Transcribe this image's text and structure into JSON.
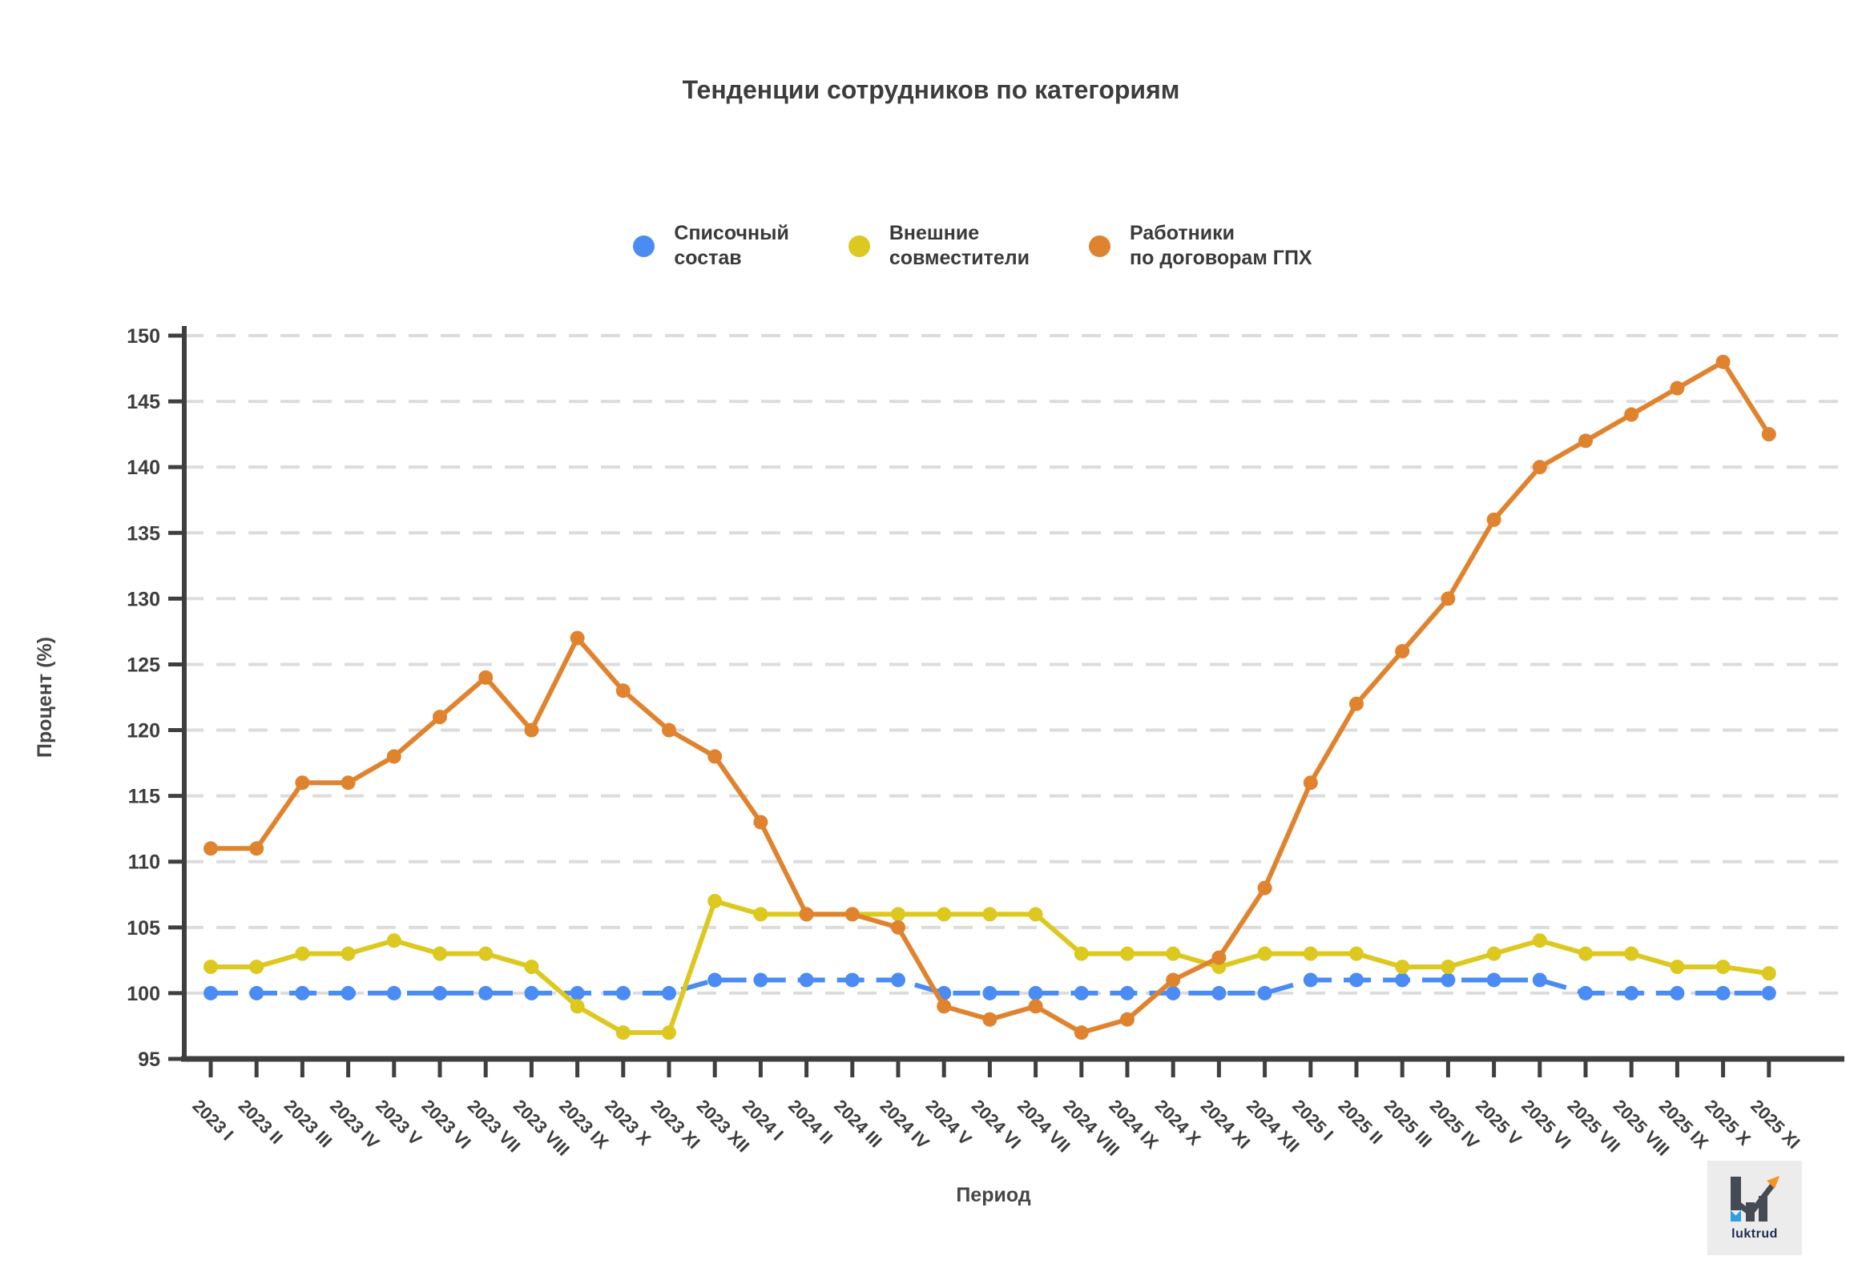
{
  "title": "Тенденции сотрудников по категориям",
  "legend": {
    "items": [
      {
        "line1": "Списочный",
        "line2": "состав",
        "color": "#4a8cf3"
      },
      {
        "line1": "Внешние",
        "line2": "совместители",
        "color": "#dcc81e"
      },
      {
        "line1": "Работники",
        "line2": "по договорам ГПХ",
        "color": "#e0832e"
      }
    ]
  },
  "chart_data": {
    "type": "line",
    "title": "Тенденции сотрудников по категориям",
    "xlabel": "Период",
    "ylabel": "Процент (%)",
    "ylim": [
      95,
      150
    ],
    "ytick_step": 5,
    "grid": true,
    "legend_position": "top",
    "categories": [
      "2023 I",
      "2023 II",
      "2023 III",
      "2023 IV",
      "2023 V",
      "2023 VI",
      "2023 VII",
      "2023 VIII",
      "2023 IX",
      "2023 X",
      "2023 XI",
      "2023 XII",
      "2024 I",
      "2024 II",
      "2024 III",
      "2024 IV",
      "2024 V",
      "2024 VI",
      "2024 VII",
      "2024 VIII",
      "2024 IX",
      "2024 X",
      "2024 XI",
      "2024 XII",
      "2025 I",
      "2025 II",
      "2025 III",
      "2025 IV",
      "2025 V",
      "2025 VI",
      "2025 VII",
      "2025 VIII",
      "2025 IX",
      "2025 X",
      "2025 XI"
    ],
    "series": [
      {
        "name": "Списочный состав",
        "color": "#4a8cf3",
        "dashed": true,
        "values": [
          100,
          100,
          100,
          100,
          100,
          100,
          100,
          100,
          100,
          100,
          100,
          101,
          101,
          101,
          101,
          101,
          100,
          100,
          100,
          100,
          100,
          100,
          100,
          100,
          101,
          101,
          101,
          101,
          101,
          101,
          100,
          100,
          100,
          100,
          100
        ]
      },
      {
        "name": "Внешние совместители",
        "color": "#dcc81e",
        "dashed": false,
        "values": [
          102,
          102,
          103,
          103,
          104,
          103,
          103,
          102,
          99,
          97,
          97,
          107,
          106,
          106,
          106,
          106,
          106,
          106,
          106,
          103,
          103,
          103,
          102,
          103,
          103,
          103,
          102,
          102,
          103,
          104,
          103,
          103,
          102,
          102,
          101.5
        ]
      },
      {
        "name": "Работники по договорам ГПХ",
        "color": "#e0832e",
        "dashed": false,
        "values": [
          111,
          111,
          116,
          116,
          118,
          121,
          124,
          120,
          127,
          123,
          120,
          118,
          113,
          106,
          106,
          105,
          99,
          98,
          99,
          97,
          98,
          101,
          102.7,
          108,
          116,
          122,
          126,
          130,
          136,
          140,
          142,
          144,
          146,
          148,
          142.5
        ]
      }
    ],
    "colors": {
      "grid": "#dcdcdc",
      "axis": "#3f3f3f",
      "tick_label": "#3d3d3d",
      "axis_title": "#464646"
    }
  },
  "logo": {
    "text": "luktrud"
  }
}
